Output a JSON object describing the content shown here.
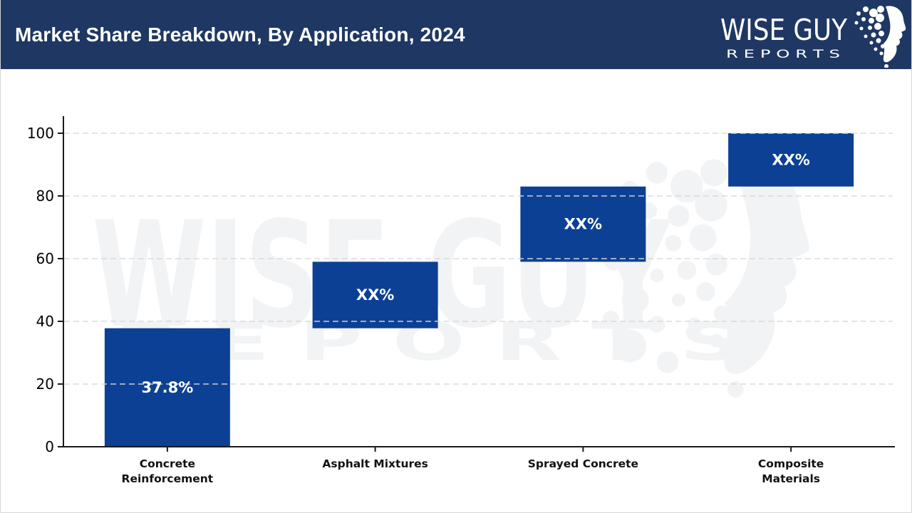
{
  "header": {
    "title": "Market Share Breakdown, By Application, 2024",
    "bg_color": "#1f3763",
    "logo": {
      "line1": "WISE GUY",
      "line2": "R E P O R T S"
    }
  },
  "watermark": {
    "line1": "WISE GUY",
    "line2": "R E P O R T S"
  },
  "colors": {
    "header_bg": "#1f3763",
    "bar": "#0c4094",
    "bar_label": "#ffffff",
    "grid": "#d9d9d9",
    "axis": "#1a1a1a",
    "tick_label": "#000000",
    "category_label": "#111111",
    "watermark": "#f2f3f5",
    "page_bg": "#ffffff"
  },
  "chart_data": {
    "type": "bar",
    "variant": "waterfall (floating stacked-breakdown bars)",
    "title": "Market Share Breakdown, By Application, 2024",
    "categories": [
      "Concrete Reinforcement",
      "Asphalt Mixtures",
      "Sprayed Concrete",
      "Composite Materials"
    ],
    "category_lines": [
      [
        "Concrete",
        "Reinforcement"
      ],
      [
        "Asphalt Mixtures"
      ],
      [
        "Sprayed Concrete"
      ],
      [
        "Composite",
        "Materials"
      ]
    ],
    "segments": [
      {
        "category": "Concrete Reinforcement",
        "start": 0,
        "end": 37.8,
        "label": "37.8%"
      },
      {
        "category": "Asphalt Mixtures",
        "start": 37.8,
        "end": 59,
        "label": "XX%"
      },
      {
        "category": "Sprayed Concrete",
        "start": 59,
        "end": 83,
        "label": "XX%"
      },
      {
        "category": "Composite Materials",
        "start": 83,
        "end": 100,
        "label": "XX%"
      }
    ],
    "bar_labels": [
      "37.8%",
      "XX%",
      "XX%",
      "XX%"
    ],
    "xlabel": "",
    "ylabel": "",
    "ylim": [
      0,
      100
    ],
    "yticks": [
      0,
      20,
      40,
      60,
      80,
      100
    ],
    "grid": "horizontal dashed, drawn over bars",
    "legend": "none"
  }
}
